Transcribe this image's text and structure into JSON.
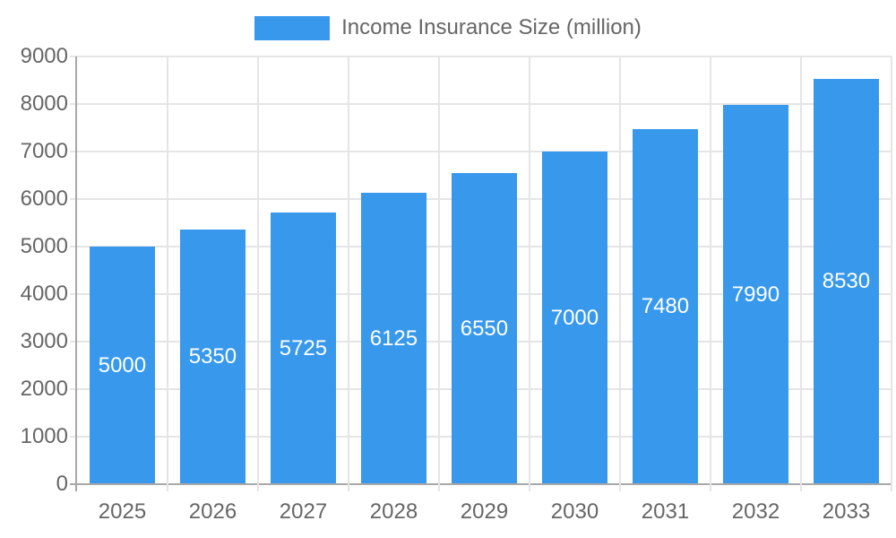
{
  "legend": {
    "label": "Income Insurance Size (million)"
  },
  "chart_data": {
    "type": "bar",
    "title": "",
    "categories": [
      "2025",
      "2026",
      "2027",
      "2028",
      "2029",
      "2030",
      "2031",
      "2032",
      "2033"
    ],
    "values": [
      5000,
      5350,
      5725,
      6125,
      6550,
      7000,
      7480,
      7990,
      8530
    ],
    "series": [
      {
        "name": "Income Insurance Size (million)",
        "values": [
          5000,
          5350,
          5725,
          6125,
          6550,
          7000,
          7480,
          7990,
          8530
        ]
      }
    ],
    "value_labels_shown": true,
    "xlabel": "",
    "ylabel": "",
    "ylim": [
      0,
      9000
    ],
    "ytick_step": 1000,
    "y_tick_labels": [
      "0",
      "1000",
      "2000",
      "3000",
      "4000",
      "5000",
      "6000",
      "7000",
      "8000",
      "9000"
    ],
    "grid": true,
    "legend_position": "top",
    "bar_color": "#3899ec",
    "value_label_color": "#ffffff",
    "axis_text_color": "#666666",
    "gridline_color": "#e5e5e5",
    "axis_line_color": "#a8a8a8",
    "background_color": "#ffffff"
  }
}
